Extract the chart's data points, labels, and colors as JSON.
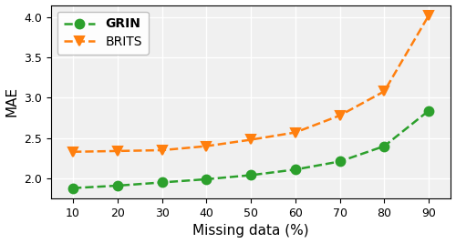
{
  "x": [
    10,
    20,
    30,
    40,
    50,
    60,
    70,
    80,
    90
  ],
  "grin_y": [
    1.88,
    1.91,
    1.95,
    1.99,
    2.04,
    2.11,
    2.21,
    2.4,
    2.84
  ],
  "brits_y": [
    2.33,
    2.34,
    2.35,
    2.4,
    2.48,
    2.57,
    2.78,
    3.08,
    4.02
  ],
  "grin_color": "#2ca02c",
  "brits_color": "#ff7f0e",
  "grin_label": "GRIN",
  "brits_label": "BRITS",
  "xlabel": "Missing data (%)",
  "ylabel": "MAE",
  "xlim": [
    5,
    95
  ],
  "ylim": [
    1.75,
    4.15
  ],
  "yticks": [
    2.0,
    2.5,
    3.0,
    3.5,
    4.0
  ],
  "xticks": [
    10,
    20,
    30,
    40,
    50,
    60,
    70,
    80,
    90
  ],
  "legend_fontsize": 10,
  "axis_label_fontsize": 11,
  "tick_fontsize": 9,
  "linewidth": 1.8,
  "markersize": 7,
  "background_color": "#f0f0f0",
  "grid_color": "#ffffff",
  "grin_bold": true,
  "brits_bold": false
}
